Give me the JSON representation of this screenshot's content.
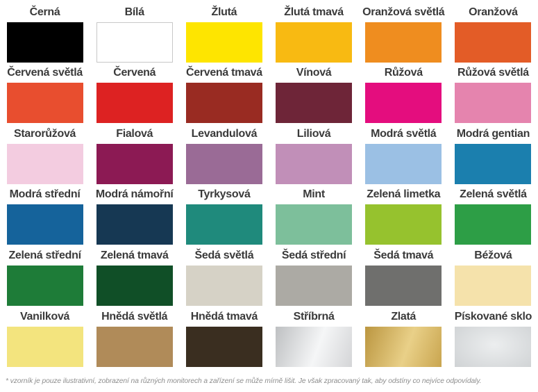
{
  "page": {
    "background": "#ffffff"
  },
  "palette": {
    "label_color": "#3a3a3a",
    "footnote_color": "#8e8e8e",
    "white_swatch_border": "#c8c8c8"
  },
  "footnote": "* vzorník je pouze ilustrativní, zobrazení na různých monitorech a zařízení se může mírně lišit. Je však zpracovaný tak, aby odstíny co nejvíce odpovídaly.",
  "swatches": [
    {
      "label": "Černá",
      "color": "#000000"
    },
    {
      "label": "Bílá",
      "color": "#ffffff",
      "border": true
    },
    {
      "label": "Žlutá",
      "color": "#fee500"
    },
    {
      "label": "Žlutá tmavá",
      "color": "#f8ba12"
    },
    {
      "label": "Oranžová světlá",
      "color": "#ef8d1f"
    },
    {
      "label": "Oranžová",
      "color": "#e35c27"
    },
    {
      "label": "Červená světlá",
      "color": "#e84e2f"
    },
    {
      "label": "Červená",
      "color": "#dd2222"
    },
    {
      "label": "Červená tmavá",
      "color": "#992b22"
    },
    {
      "label": "Vínová",
      "color": "#6e2538"
    },
    {
      "label": "Růžová",
      "color": "#e40d7e"
    },
    {
      "label": "Růžová světlá",
      "color": "#e584ae"
    },
    {
      "label": "Starorůžová",
      "color": "#f3cce0"
    },
    {
      "label": "Fialová",
      "color": "#8c1a54"
    },
    {
      "label": "Levandulová",
      "color": "#9a6b96"
    },
    {
      "label": "Liliová",
      "color": "#c18fb8"
    },
    {
      "label": "Modrá světlá",
      "color": "#9bc0e4"
    },
    {
      "label": "Modrá gentian",
      "color": "#1b7fae"
    },
    {
      "label": "Modrá střední",
      "color": "#15639b"
    },
    {
      "label": "Modrá námořní",
      "color": "#163853"
    },
    {
      "label": "Tyrkysová",
      "color": "#1f8a7c"
    },
    {
      "label": "Mint",
      "color": "#7dbf9b"
    },
    {
      "label": "Zelená limetka",
      "color": "#96c22e"
    },
    {
      "label": "Zelená světlá",
      "color": "#2d9e46"
    },
    {
      "label": "Zelená střední",
      "color": "#1e7c38"
    },
    {
      "label": "Zelená tmavá",
      "color": "#104f27"
    },
    {
      "label": "Šedá světlá",
      "color": "#d6d2c6"
    },
    {
      "label": "Šedá střední",
      "color": "#acaaa4"
    },
    {
      "label": "Šedá tmavá",
      "color": "#6f6f6d"
    },
    {
      "label": "Béžová",
      "color": "#f5e2ab"
    },
    {
      "label": "Vanilková",
      "color": "#f3e47e"
    },
    {
      "label": "Hnědá světlá",
      "color": "#b08b59"
    },
    {
      "label": "Hnědá tmavá",
      "color": "#3a2e20"
    },
    {
      "label": "Stříbrná",
      "gradient": {
        "type": "linear",
        "angle": "110deg",
        "stops": [
          "#bec0c2",
          "#f5f6f7",
          "#d4d5d7"
        ]
      }
    },
    {
      "label": "Zlatá",
      "gradient": {
        "type": "linear",
        "angle": "110deg",
        "stops": [
          "#bb9640",
          "#e9d088",
          "#c9a54f"
        ]
      }
    },
    {
      "label": "Pískované sklo",
      "gradient": {
        "type": "radial",
        "stops": [
          "#eceeef",
          "#cfd2d4"
        ]
      }
    }
  ]
}
